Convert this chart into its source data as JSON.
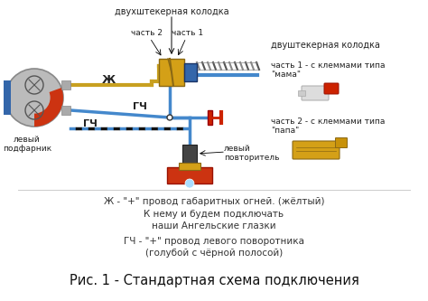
{
  "background_color": "#ffffff",
  "title": "Рис. 1 - Стандартная схема подключения",
  "title_fontsize": 10.5,
  "top_label": "двухштекерная колодка",
  "part2_label": "часть 2",
  "part1_label": "часть 1",
  "right_title": "двуштекерная колодка",
  "right_part1": "часть 1 - с клеммами типа\n\"мама\"",
  "right_part2": "часть 2 - с клеммами типа\n\"папа\"",
  "left_label": "левый\nподфарник",
  "center_label": "левый\nповторитель",
  "legend_line1": "Ж - \"+\" провод габаритных огней. (жёлтый)",
  "legend_line2": "К нему и будем подключать",
  "legend_line3": "наши Ангельские глазки",
  "legend_line4": "ГЧ - \"+\" провод левого поворотника",
  "legend_line5": "(голубой с чёрной полосой)",
  "zh_label": "Ж",
  "gch_label1": "ГЧ",
  "gch_label2": "ГЧ",
  "fig_width": 4.74,
  "fig_height": 3.33,
  "dpi": 100,
  "yellow": "#DAA520",
  "blue": "#4488CC",
  "dark_blue": "#1A4C8A",
  "red": "#CC2200",
  "gray": "#888888",
  "dark_gray": "#444444",
  "connector_yellow": "#D4A017",
  "connector_join": "#C8A020",
  "wire_yellow": "#C8A020",
  "wire_blue": "#4488CC",
  "wire_blue_dark": "#003388"
}
